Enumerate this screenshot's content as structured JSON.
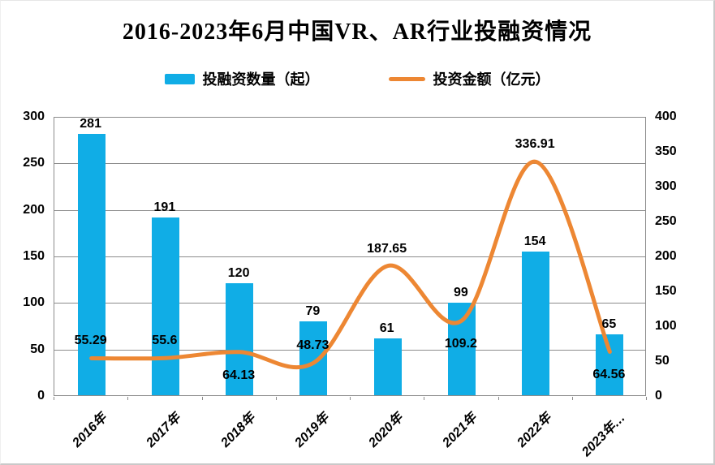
{
  "title": "2016-2023年6月中国VR、AR行业投融资情况",
  "legend": [
    {
      "label": "投融资数量（起）",
      "type": "bar",
      "color": "#10ADE6"
    },
    {
      "label": "投资金额（亿元）",
      "type": "line",
      "color": "#ED8733"
    }
  ],
  "chart_data": {
    "type": "combo-bar-line",
    "title": "2016-2023年6月中国VR、AR行业投融资情况",
    "categories": [
      "2016年",
      "2017年",
      "2018年",
      "2019年",
      "2020年",
      "2021年",
      "2022年",
      "2023年…"
    ],
    "series": [
      {
        "name": "投融资数量（起）",
        "type": "bar",
        "axis": "left",
        "color": "#10ADE6",
        "values": [
          281,
          191,
          120,
          79,
          61,
          99,
          154,
          65
        ],
        "data_labels": [
          "281",
          "191",
          "120",
          "79",
          "61",
          "99",
          "154",
          "65"
        ]
      },
      {
        "name": "投资金额（亿元）",
        "type": "line",
        "smooth": true,
        "axis": "right",
        "color": "#ED8733",
        "values": [
          55.29,
          55.6,
          64.13,
          48.73,
          187.65,
          109.2,
          336.91,
          64.56
        ],
        "data_labels": [
          "55.29",
          "55.6",
          "64.13",
          "48.73",
          "187.65",
          "109.2",
          "336.91",
          "64.56"
        ],
        "label_positions": [
          "above",
          "above",
          "below",
          "above",
          "above",
          "below",
          "above",
          "below"
        ]
      }
    ],
    "left_axis": {
      "min": 0,
      "max": 300,
      "step": 50,
      "ticks": [
        "0",
        "50",
        "100",
        "150",
        "200",
        "250",
        "300"
      ]
    },
    "right_axis": {
      "min": 0,
      "max": 400,
      "step": 50,
      "ticks": [
        "0",
        "50",
        "100",
        "150",
        "200",
        "250",
        "300",
        "350",
        "400"
      ]
    },
    "grid": true,
    "legend_position": "top",
    "grid_color": "#8c8c8c",
    "text_color": "#000000"
  }
}
